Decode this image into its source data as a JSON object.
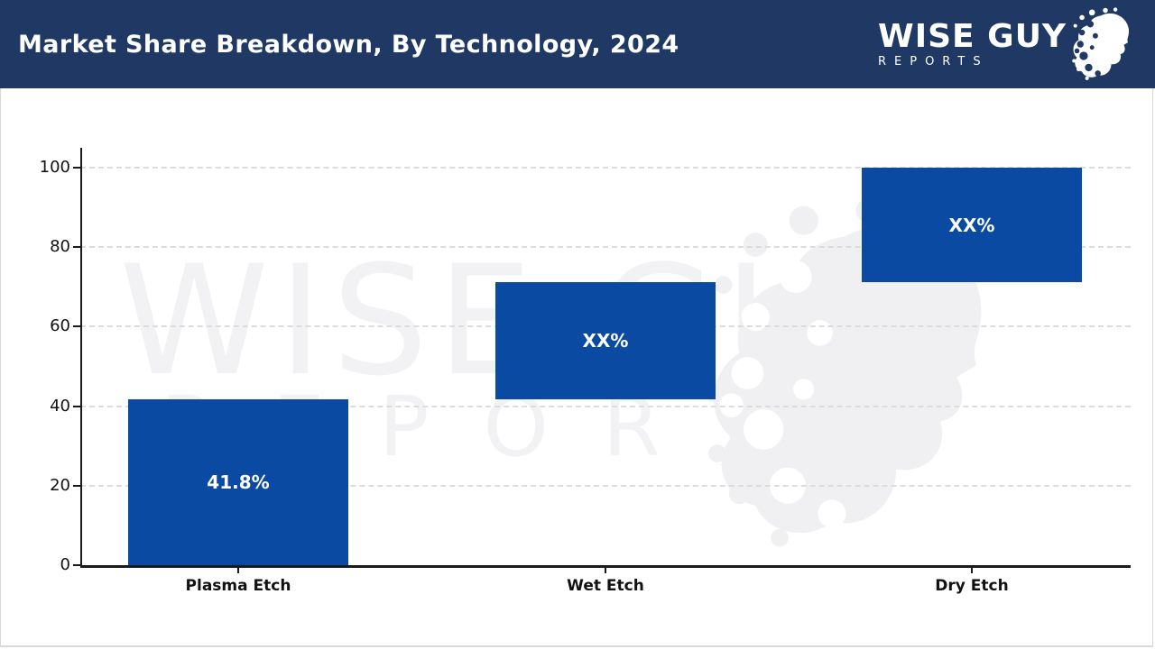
{
  "header": {
    "title": "Market Share Breakdown, By Technology, 2024",
    "logo": {
      "line1": "WISE GUY",
      "line2": "REPORTS"
    }
  },
  "watermark": {
    "line1": "WISE GUY",
    "line2": "REPORTS"
  },
  "colors": {
    "header_bg": "#1f3864",
    "bar": "#0b4aa2",
    "bar_label": "#ffffff",
    "grid": "#dcdcdc",
    "axis": "#1a1a1a",
    "watermark": "#f2f2f4"
  },
  "chart_data": {
    "type": "bar",
    "subtype": "waterfall-cumulative",
    "title": "Market Share Breakdown, By Technology, 2024",
    "categories": [
      "Plasma Etch",
      "Wet Etch",
      "Dry Etch"
    ],
    "segments": [
      {
        "category": "Plasma Etch",
        "start": 0,
        "end": 41.8,
        "label": "41.8%"
      },
      {
        "category": "Wet Etch",
        "start": 41.8,
        "end": 71.2,
        "label": "XX%"
      },
      {
        "category": "Dry Etch",
        "start": 71.2,
        "end": 100,
        "label": "XX%"
      }
    ],
    "xlabel": "",
    "ylabel": "",
    "ylim": [
      0,
      105
    ],
    "yticks": [
      0,
      20,
      40,
      60,
      80,
      100
    ],
    "grid": "horizontal-dashed",
    "legend": "none",
    "bar_color": "#0b4aa2",
    "value_labels": [
      "41.8%",
      "XX%",
      "XX%"
    ]
  }
}
